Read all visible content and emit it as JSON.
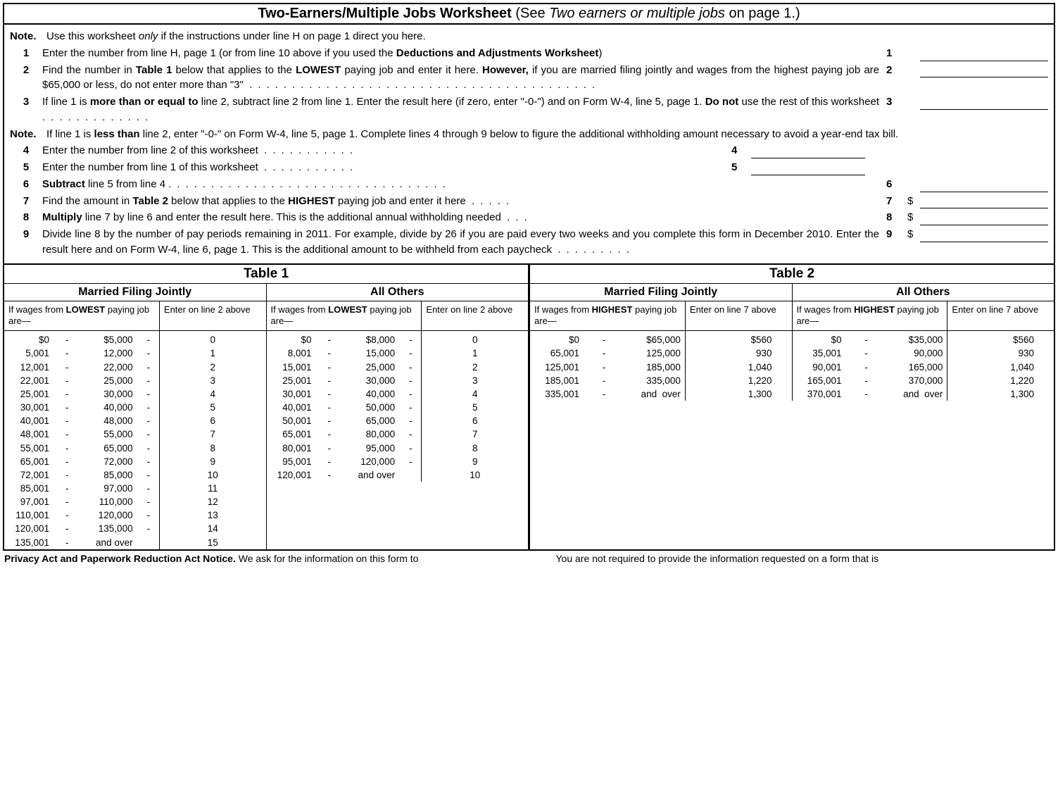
{
  "title": {
    "main": "Two-Earners/Multiple Jobs Worksheet",
    "paren_pre": " (See ",
    "paren_ital": "Two earners or multiple jobs",
    "paren_post": " on page 1.)"
  },
  "note1": {
    "label": "Note.",
    "pre": " Use this worksheet ",
    "ital": "only",
    "post": " if the instructions under line H on page 1 direct you here."
  },
  "line1": {
    "num": "1",
    "text_a": "Enter the number from line H, page 1 (or from line 10 above if you used the ",
    "text_b": "Deductions and Adjustments Worksheet",
    "text_c": ")",
    "rnum": "1"
  },
  "line2": {
    "num": "2",
    "t1": "Find the number in ",
    "t2": "Table 1",
    "t3": " below that applies to the ",
    "t4": "LOWEST",
    "t5": " paying job and enter it here. ",
    "t6": "However,",
    "t7": " if you are married filing jointly and wages from the highest paying job are $65,000 or less, do not enter more than \"3\"",
    "rnum": "2"
  },
  "line3": {
    "num": "3",
    "t1": "If line 1 is ",
    "t2": "more than or equal to",
    "t3": " line 2, subtract line 2 from line 1. Enter the result here (if zero, enter \"-0-\") and on Form W-4, line 5, page 1. ",
    "t4": "Do not",
    "t5": " use the rest of this worksheet ",
    "rnum": "3"
  },
  "note2": {
    "label": "Note.",
    "t1": " If line 1 is ",
    "t2": "less than",
    "t3": " line 2, enter \"-0-\" on Form W-4, line 5, page 1. Complete lines 4 through 9 below to figure the additional withholding amount necessary to avoid a year-end tax bill."
  },
  "line4": {
    "num": "4",
    "t": "Enter the number from line 2 of this worksheet",
    "mnum": "4"
  },
  "line5": {
    "num": "5",
    "t": "Enter the number from line 1 of this worksheet",
    "mnum": "5"
  },
  "line6": {
    "num": "6",
    "t1": "Subtract",
    "t2": " line 5 from line 4 ",
    "rnum": "6"
  },
  "line7": {
    "num": "7",
    "t1": "Find the amount in ",
    "t2": "Table 2",
    "t3": " below that applies to the ",
    "t4": "HIGHEST",
    "t5": " paying job and enter it here",
    "rnum": "7",
    "prefix": "$"
  },
  "line8": {
    "num": "8",
    "t1": "Multiply",
    "t2": " line 7 by line 6 and enter the result here. This is the additional annual withholding needed",
    "rnum": "8",
    "prefix": "$"
  },
  "line9": {
    "num": "9",
    "t": "Divide line 8 by the number of pay periods remaining in 2011. For example, divide by 26 if you are paid every two weeks and you complete this form in December 2010. Enter the result here and on Form W-4, line 6, page 1. This is the additional amount to be withheld from each paycheck",
    "rnum": "9",
    "prefix": "$"
  },
  "tables": {
    "t1_title": "Table 1",
    "t2_title": "Table 2",
    "mfj": "Married Filing Jointly",
    "others": "All Others",
    "hdr_lowest_a": "If wages from ",
    "hdr_lowest_b": "LOWEST",
    "hdr_lowest_c": " paying job are—",
    "hdr_highest_a": "If wages from ",
    "hdr_highest_b": "HIGHEST",
    "hdr_highest_c": " paying job are—",
    "hdr_enter2": "Enter on line 2 above",
    "hdr_enter7": "Enter on line 7 above",
    "t1_mfj": {
      "ranges": [
        {
          "lo": "$0",
          "hi": "$5,000",
          "t": "-"
        },
        {
          "lo": "5,001",
          "hi": "12,000",
          "t": "-"
        },
        {
          "lo": "12,001",
          "hi": "22,000",
          "t": "-"
        },
        {
          "lo": "22,001",
          "hi": "25,000",
          "t": "-"
        },
        {
          "lo": "25,001",
          "hi": "30,000",
          "t": "-"
        },
        {
          "lo": "30,001",
          "hi": "40,000",
          "t": "-"
        },
        {
          "lo": "40,001",
          "hi": "48,000",
          "t": "-"
        },
        {
          "lo": "48,001",
          "hi": "55,000",
          "t": "-"
        },
        {
          "lo": "55,001",
          "hi": "65,000",
          "t": "-"
        },
        {
          "lo": "65,001",
          "hi": "72,000",
          "t": "-"
        },
        {
          "lo": "72,001",
          "hi": "85,000",
          "t": "-"
        },
        {
          "lo": "85,001",
          "hi": "97,000",
          "t": "-"
        },
        {
          "lo": "97,001",
          "hi": "110,000",
          "t": "-"
        },
        {
          "lo": "110,001",
          "hi": "120,000",
          "t": "-"
        },
        {
          "lo": "120,001",
          "hi": "135,000",
          "t": "-"
        },
        {
          "lo": "135,001",
          "hi": "and over",
          "t": ""
        }
      ],
      "vals": [
        "0",
        "1",
        "2",
        "3",
        "4",
        "5",
        "6",
        "7",
        "8",
        "9",
        "10",
        "11",
        "12",
        "13",
        "14",
        "15"
      ]
    },
    "t1_oth": {
      "ranges": [
        {
          "lo": "$0",
          "hi": "$8,000",
          "t": "-"
        },
        {
          "lo": "8,001",
          "hi": "15,000",
          "t": "-"
        },
        {
          "lo": "15,001",
          "hi": "25,000",
          "t": "-"
        },
        {
          "lo": "25,001",
          "hi": "30,000",
          "t": "-"
        },
        {
          "lo": "30,001",
          "hi": "40,000",
          "t": "-"
        },
        {
          "lo": "40,001",
          "hi": "50,000",
          "t": "-"
        },
        {
          "lo": "50,001",
          "hi": "65,000",
          "t": "-"
        },
        {
          "lo": "65,001",
          "hi": "80,000",
          "t": "-"
        },
        {
          "lo": "80,001",
          "hi": "95,000",
          "t": "-"
        },
        {
          "lo": "95,001",
          "hi": "120,000",
          "t": "-"
        },
        {
          "lo": "120,001",
          "hi": "and over",
          "t": ""
        }
      ],
      "vals": [
        "0",
        "1",
        "2",
        "3",
        "4",
        "5",
        "6",
        "7",
        "8",
        "9",
        "10"
      ]
    },
    "t2_mfj": {
      "ranges": [
        {
          "lo": "$0",
          "hi": "$65,000"
        },
        {
          "lo": "65,001",
          "hi": "125,000"
        },
        {
          "lo": "125,001",
          "hi": "185,000"
        },
        {
          "lo": "185,001",
          "hi": "335,000"
        },
        {
          "lo": "335,001",
          "hi": "and  over"
        }
      ],
      "vals": [
        "$560",
        "930",
        "1,040",
        "1,220",
        "1,300"
      ]
    },
    "t2_oth": {
      "ranges": [
        {
          "lo": "$0",
          "hi": "$35,000"
        },
        {
          "lo": "35,001",
          "hi": "90,000"
        },
        {
          "lo": "90,001",
          "hi": "165,000"
        },
        {
          "lo": "165,001",
          "hi": "370,000"
        },
        {
          "lo": "370,001",
          "hi": "and  over"
        }
      ],
      "vals": [
        "$560",
        "930",
        "1,040",
        "1,220",
        "1,300"
      ]
    }
  },
  "footer": {
    "left_bold": "Privacy Act and Paperwork Reduction Act Notice.",
    "left_rest": " We ask for the information on this form to",
    "right": "You are not required to provide the information requested on a form that is"
  }
}
